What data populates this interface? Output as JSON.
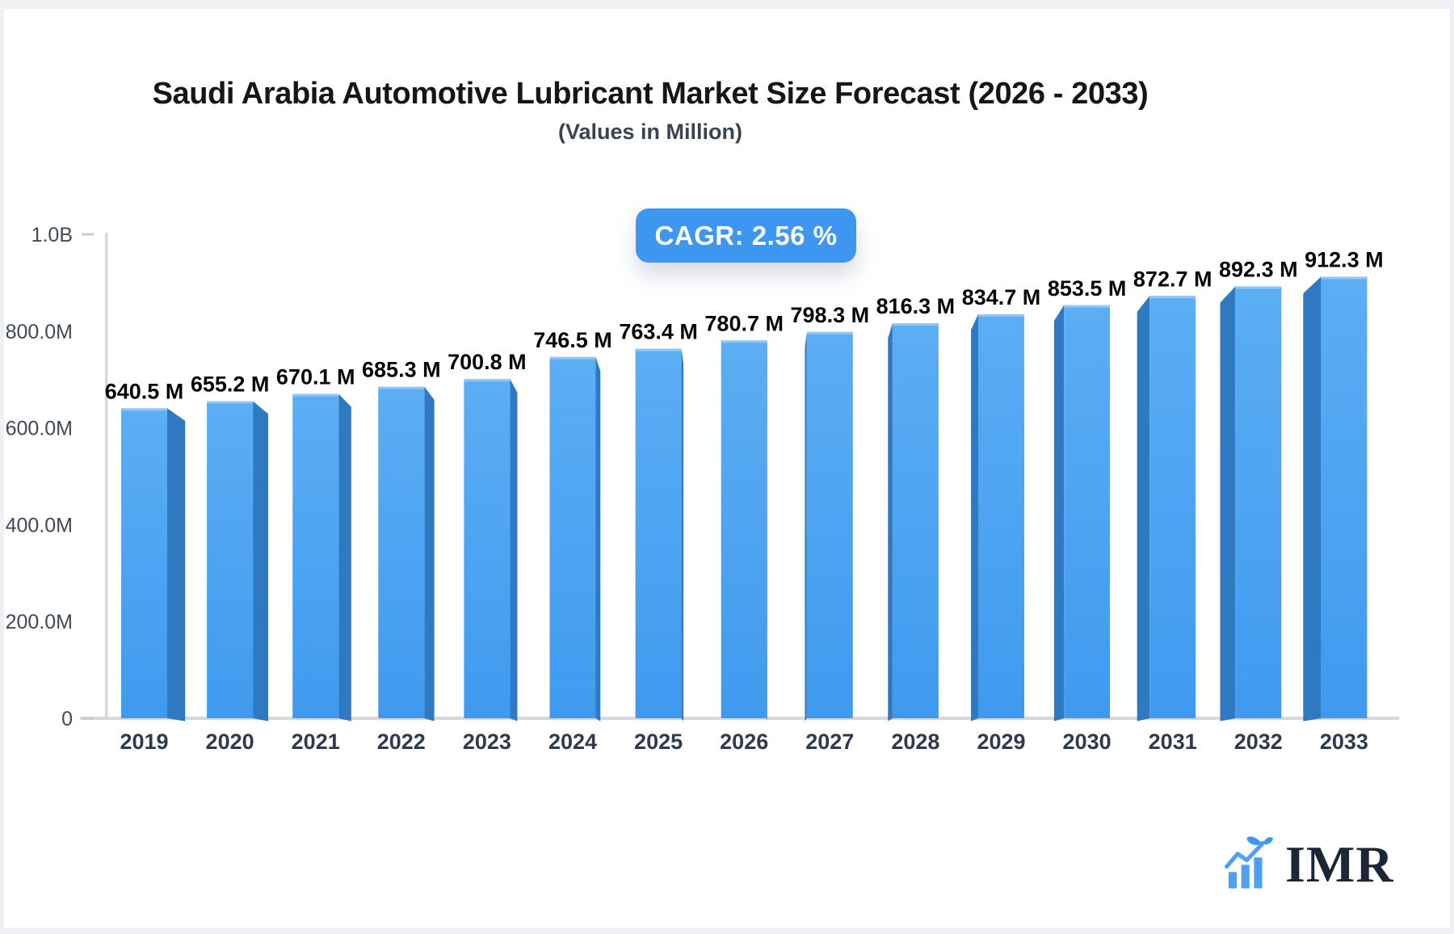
{
  "title": "Saudi Arabia Automotive Lubricant Market Size Forecast (2026 - 2033)",
  "subtitle": "(Values in Million)",
  "badge": {
    "label": "CAGR: 2.56 %"
  },
  "logo": {
    "text": "IMR"
  },
  "colors": {
    "badge_bg": "#3d96ef",
    "bar_face_top": "#5caef4",
    "bar_face_bottom": "#3f9aef",
    "bar_side": "#2e79bf",
    "bar_top_edge": "#8fc7f9",
    "axis_line": "#d7d7df",
    "tick_dash": "#c9cbd3",
    "y_label": "#3e4a5b",
    "x_label": "#2e3b4e",
    "value_label": "#060606",
    "logo_blue": "#4da0f4",
    "logo_text": "#1b2636"
  },
  "chart_data": {
    "type": "bar",
    "title": "Saudi Arabia Automotive Lubricant Market Size Forecast (2026 - 2033)",
    "subtitle": "(Values in Million)",
    "unit": "Million",
    "categories": [
      "2019",
      "2020",
      "2021",
      "2022",
      "2023",
      "2024",
      "2025",
      "2026",
      "2027",
      "2028",
      "2029",
      "2030",
      "2031",
      "2032",
      "2033"
    ],
    "values": [
      640.5,
      655.2,
      670.1,
      685.3,
      700.8,
      746.5,
      763.4,
      780.7,
      798.3,
      816.3,
      834.7,
      853.5,
      872.7,
      892.3,
      912.3
    ],
    "value_labels": [
      "640.5 M",
      "655.2 M",
      "670.1 M",
      "685.3 M",
      "700.8 M",
      "746.5 M",
      "763.4 M",
      "780.7 M",
      "798.3 M",
      "816.3 M",
      "834.7 M",
      "853.5 M",
      "872.7 M",
      "892.3 M",
      "912.3 M"
    ],
    "xlabel": "",
    "ylabel": "",
    "ylim": [
      0,
      1000
    ],
    "yticks": [
      {
        "value": 0,
        "label": "0"
      },
      {
        "value": 200,
        "label": "200.0M"
      },
      {
        "value": 400,
        "label": "400.0M"
      },
      {
        "value": 600,
        "label": "600.0M"
      },
      {
        "value": 800,
        "label": "800.0M"
      },
      {
        "value": 1000,
        "label": "1.0B"
      }
    ],
    "grid": false,
    "legend": "none",
    "style": "3d-perspective-columns"
  }
}
